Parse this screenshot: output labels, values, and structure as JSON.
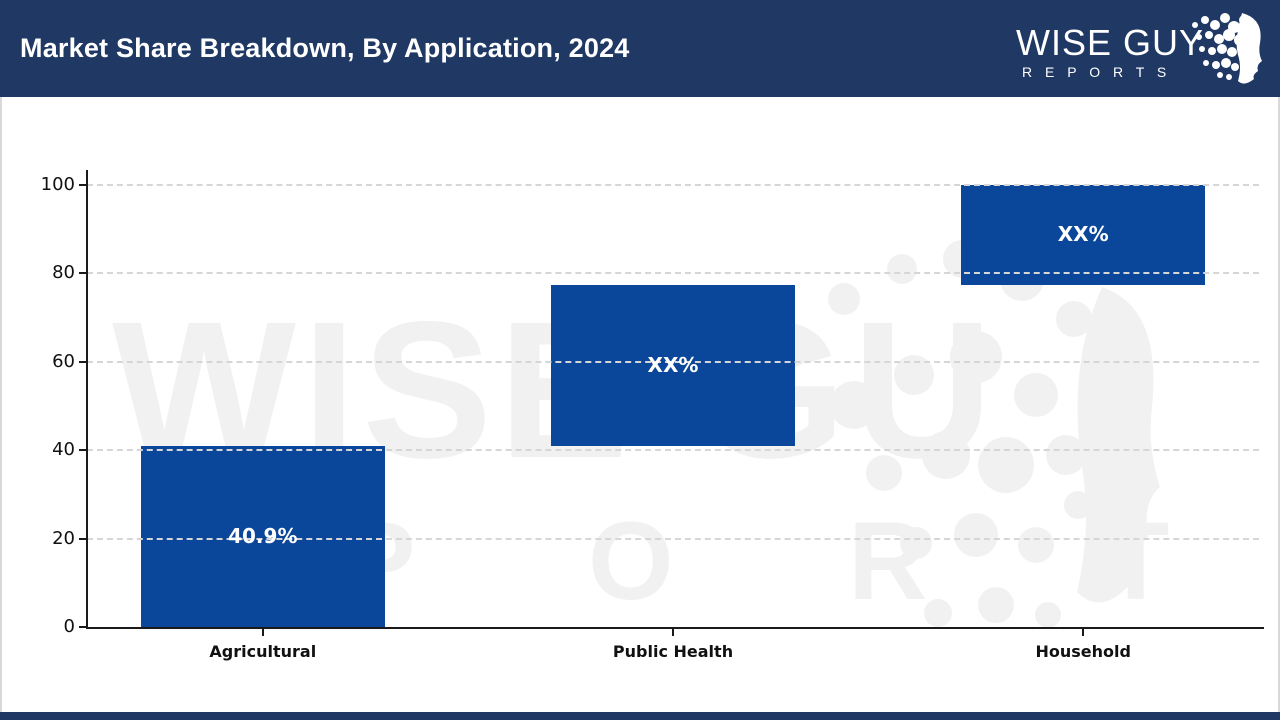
{
  "header": {
    "title": "Market Share Breakdown, By Application, 2024",
    "logo": {
      "line1": "WISE GUY",
      "line2": "R E P O R T S"
    }
  },
  "colors": {
    "header_bg": "#1f3864",
    "footer_bg": "#1f3864",
    "bar": "#0a4699",
    "grid": "#d6d6d6",
    "watermark": "#f1f1f1"
  },
  "watermark": {
    "line1": "WISE GU",
    "line2": "P O R T S"
  },
  "chart_data": {
    "type": "bar",
    "subtype": "waterfall",
    "title": "Market Share Breakdown, By Application, 2024",
    "categories": [
      "Agricultural",
      "Public Health",
      "Household"
    ],
    "segments": [
      {
        "category": "Agricultural",
        "start": 0,
        "end": 40.9,
        "label": "40.9%"
      },
      {
        "category": "Public Health",
        "start": 40.9,
        "end": 77.3,
        "label": "XX%"
      },
      {
        "category": "Household",
        "start": 77.3,
        "end": 100,
        "label": "XX%"
      }
    ],
    "xlabel": "",
    "ylabel": "",
    "yticks": [
      0,
      20,
      40,
      60,
      80,
      100
    ],
    "ylim": [
      0,
      100
    ],
    "grid": "dashed-horizontal-over-bars",
    "legend": "none",
    "bar_color": "#0a4699"
  }
}
